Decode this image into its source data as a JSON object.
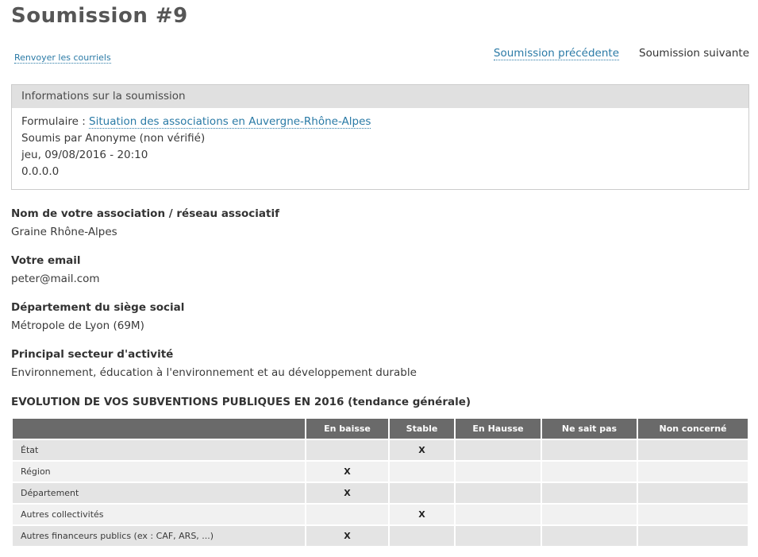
{
  "page": {
    "title": "Soumission #9"
  },
  "toolbar": {
    "resend_label": "Renvoyer les courriels",
    "prev_label": "Soumission précédente",
    "next_label": "Soumission suivante"
  },
  "info_box": {
    "title": "Informations sur la soumission",
    "form_prefix": "Formulaire :",
    "form_link": "Situation des associations en Auvergne-Rhône-Alpes",
    "submitted_by": "Soumis par Anonyme (non vérifié)",
    "date": "jeu, 09/08/2016 - 20:10",
    "ip": "0.0.0.0"
  },
  "fields": [
    {
      "label": "Nom de votre association / réseau associatif",
      "value": "Graine Rhône-Alpes"
    },
    {
      "label": "Votre email",
      "value": "peter@mail.com"
    },
    {
      "label": "Département du siège social",
      "value": "Métropole de Lyon (69M)"
    },
    {
      "label": "Principal secteur d'activité",
      "value": "Environnement, éducation à l'environnement et au développement durable"
    }
  ],
  "grid": {
    "title": "EVOLUTION DE VOS SUBVENTIONS PUBLIQUES EN 2016 (tendance générale)",
    "columns": [
      "En baisse",
      "Stable",
      "En Hausse",
      "Ne sait pas",
      "Non concerné"
    ],
    "rows": [
      {
        "label": "État",
        "marks": [
          "",
          "X",
          "",
          "",
          ""
        ]
      },
      {
        "label": "Région",
        "marks": [
          "X",
          "",
          "",
          "",
          ""
        ]
      },
      {
        "label": "Département",
        "marks": [
          "X",
          "",
          "",
          "",
          ""
        ]
      },
      {
        "label": "Autres collectivités",
        "marks": [
          "",
          "X",
          "",
          "",
          ""
        ]
      },
      {
        "label": "Autres financeurs publics (ex : CAF, ARS, ...)",
        "marks": [
          "X",
          "",
          "",
          "",
          ""
        ]
      }
    ]
  },
  "colors": {
    "link": "#2a7aa6",
    "table_header_bg": "#6a6a6a",
    "row_odd_bg": "#e4e4e4",
    "row_even_bg": "#f1f1f1",
    "info_header_bg": "#e0e0e0"
  }
}
